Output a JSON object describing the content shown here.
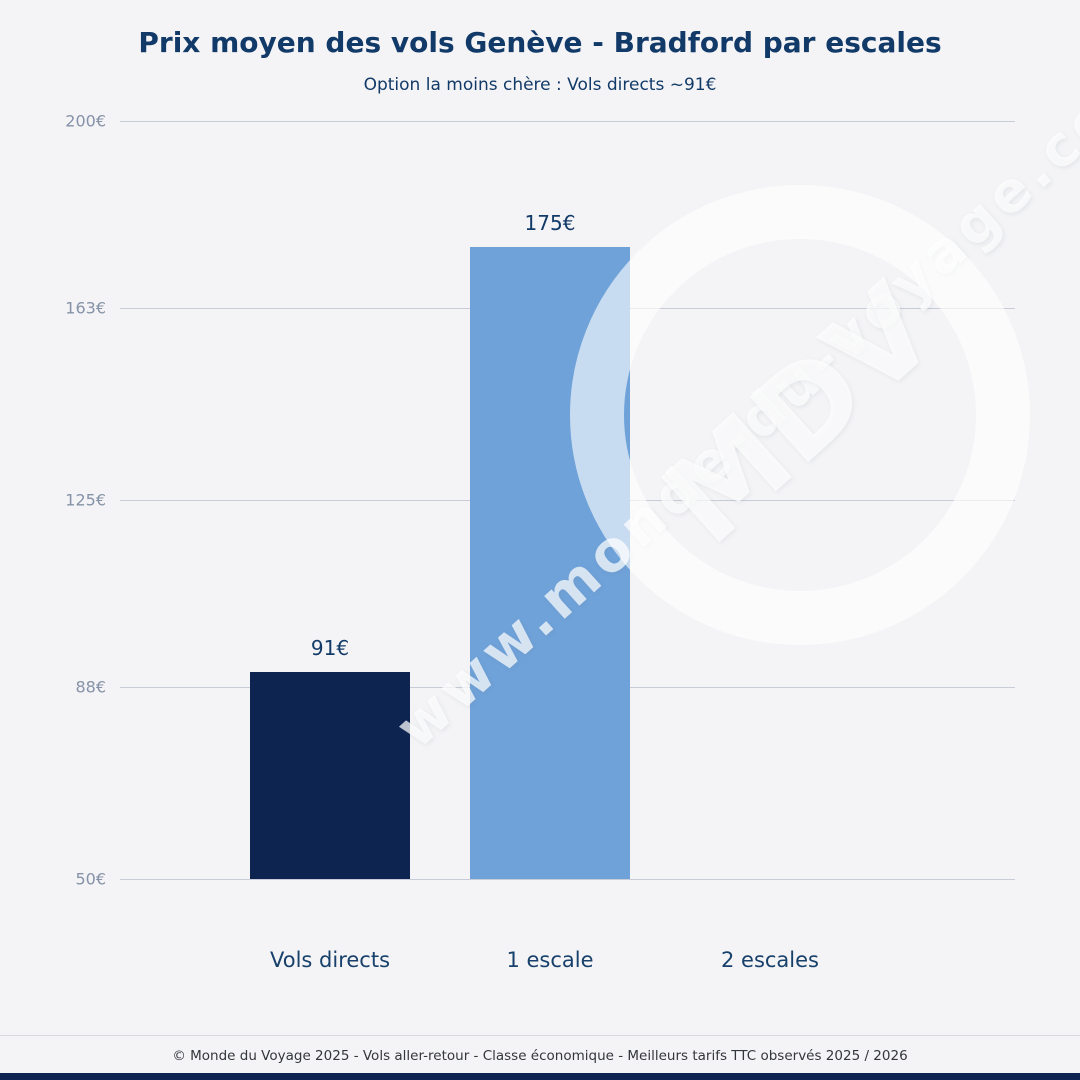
{
  "chart_data": {
    "type": "bar",
    "title": "Prix moyen des vols Genève - Bradford par escales",
    "subtitle": "Option la moins chère : Vols directs ~91€",
    "categories": [
      "Vols directs",
      "1 escale",
      "2 escales"
    ],
    "values": [
      91,
      175,
      null
    ],
    "value_labels": [
      "91€",
      "175€",
      ""
    ],
    "bar_colors": [
      "#0d2450",
      "#6fa2d9",
      "#6fa2d9"
    ],
    "ticks": [
      200,
      163,
      125,
      88,
      50
    ],
    "tick_labels": [
      "200€",
      "163€",
      "125€",
      "88€",
      "50€"
    ],
    "ylim": [
      50,
      200
    ],
    "grid": true,
    "legend": false,
    "xlabel": "",
    "ylabel": ""
  },
  "watermark": {
    "url_text": "www.monde-du-voyage.com",
    "logo_text": "MDV"
  },
  "footer": {
    "text": "© Monde du Voyage 2025 - Vols aller-retour - Classe économique - Meilleurs tarifs TTC observés 2025 / 2026"
  },
  "colors": {
    "title": "#123a68",
    "bar_dark": "#0d2450",
    "bar_light": "#6fa2d9",
    "background": "#f4f4f6"
  }
}
